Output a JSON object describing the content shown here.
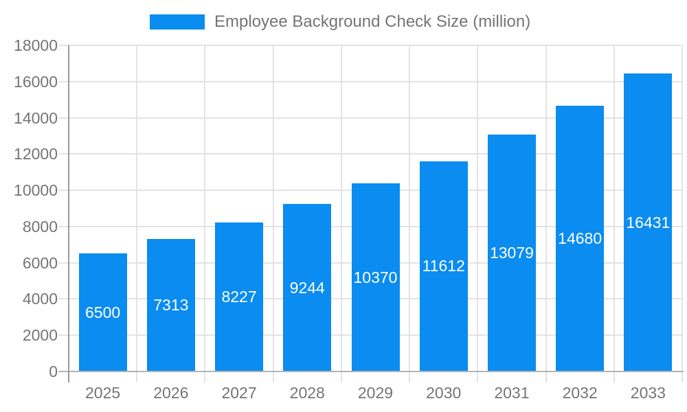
{
  "legend": {
    "label": "Employee Background Check Size (million)"
  },
  "chart_data": {
    "type": "bar",
    "title": "Employee Background Check Size (million)",
    "series_name": "Employee Background Check Size (million)",
    "categories": [
      "2025",
      "2026",
      "2027",
      "2028",
      "2029",
      "2030",
      "2031",
      "2032",
      "2033"
    ],
    "values": [
      6500,
      7313,
      8227,
      9244,
      10370,
      11612,
      13079,
      14680,
      16431
    ],
    "xlabel": "",
    "ylabel": "",
    "ylim": [
      0,
      18000
    ],
    "ytick_step": 2000,
    "yticks": [
      0,
      2000,
      4000,
      6000,
      8000,
      10000,
      12000,
      14000,
      16000,
      18000
    ],
    "grid": true,
    "legend_position": "top-center",
    "bar_label_position": "inside-center"
  },
  "colors": {
    "bar": "#0a8cf0",
    "bar_label": "#ffffff",
    "grid": "#e3e3e3",
    "baseline": "#b3b3b3",
    "axis": "#999999",
    "text": "#757575",
    "legend_text": "#757575",
    "bg": "#ffffff"
  }
}
